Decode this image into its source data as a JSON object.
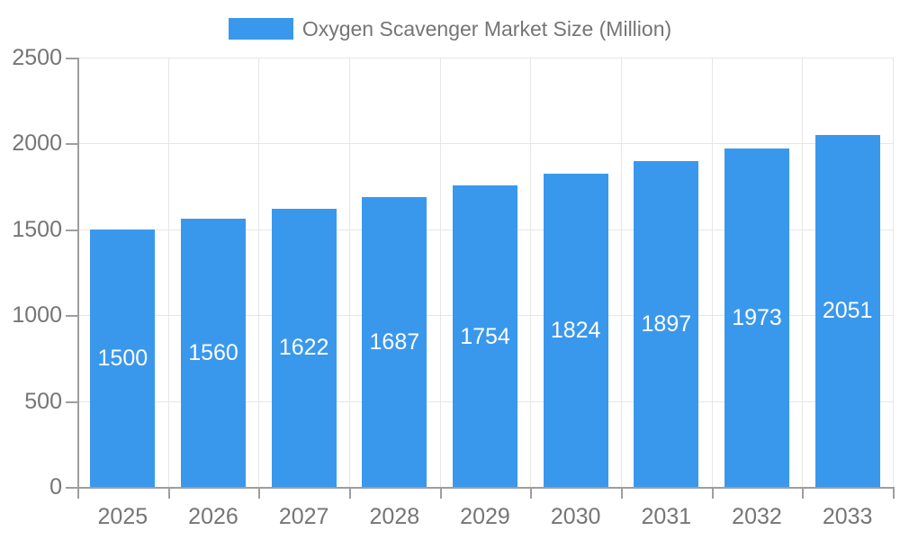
{
  "chart_data": {
    "type": "bar",
    "title": "Oxygen Scavenger Market Size (Million)",
    "categories": [
      "2025",
      "2026",
      "2027",
      "2028",
      "2029",
      "2030",
      "2031",
      "2032",
      "2033"
    ],
    "values": [
      1500,
      1560,
      1622,
      1687,
      1754,
      1824,
      1897,
      1973,
      2051
    ],
    "series": [
      {
        "name": "Oxygen Scavenger Market Size (Million)",
        "values": [
          1500,
          1560,
          1622,
          1687,
          1754,
          1824,
          1897,
          1973,
          2051
        ]
      }
    ],
    "xlabel": "",
    "ylabel": "",
    "ylim": [
      0,
      2500
    ],
    "y_ticks": [
      0,
      500,
      1000,
      1500,
      2000,
      2500
    ],
    "grid": true,
    "legend_position": "top-center",
    "value_labels": "centered-inside-bars",
    "colors": {
      "bar": "#3a98ec",
      "value_label": "#ffffff",
      "axis_label": "#757575",
      "grid_line": "#e6e6e6",
      "axis_line": "#9e9e9e",
      "background": "#ffffff"
    }
  }
}
